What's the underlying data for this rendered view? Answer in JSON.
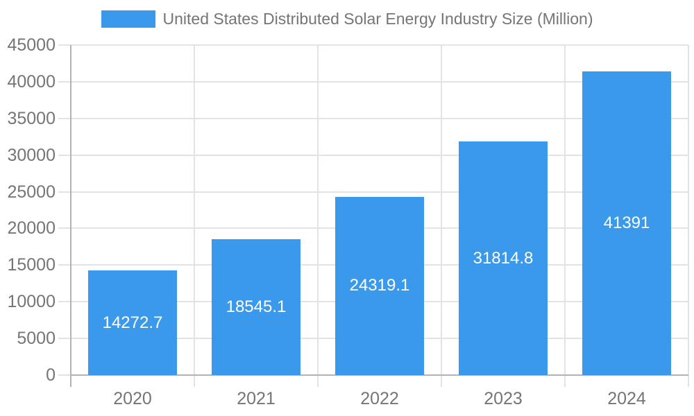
{
  "chart_data": {
    "type": "bar",
    "title": "United States Distributed Solar Energy Industry Size (Million)",
    "legend_entries": [
      "United States Distributed Solar Energy Industry Size (Million)"
    ],
    "legend_position": "top-center",
    "categories": [
      "2020",
      "2021",
      "2022",
      "2023",
      "2024"
    ],
    "series": [
      {
        "name": "United States Distributed Solar Energy Industry Size (Million)",
        "values": [
          14272.7,
          18545.1,
          24319.1,
          31814.8,
          41391
        ]
      }
    ],
    "value_labels": [
      "14272.7",
      "18545.1",
      "24319.1",
      "31814.8",
      "41391"
    ],
    "value_label_position": "inside-center",
    "xlabel": "",
    "ylabel": "",
    "ylim": [
      0,
      45000
    ],
    "y_tick_step": 5000,
    "y_tick_labels": [
      "0",
      "5000",
      "10000",
      "15000",
      "20000",
      "25000",
      "30000",
      "35000",
      "40000",
      "45000"
    ],
    "grid": true
  },
  "colors": {
    "bar": "#3B99EC",
    "axis_line": "#b3b3b3",
    "gridline": "#e3e3e3",
    "axis_text": "#757575",
    "legend_text": "#757575",
    "value_label_text": "#ffffff",
    "background": "#ffffff"
  }
}
